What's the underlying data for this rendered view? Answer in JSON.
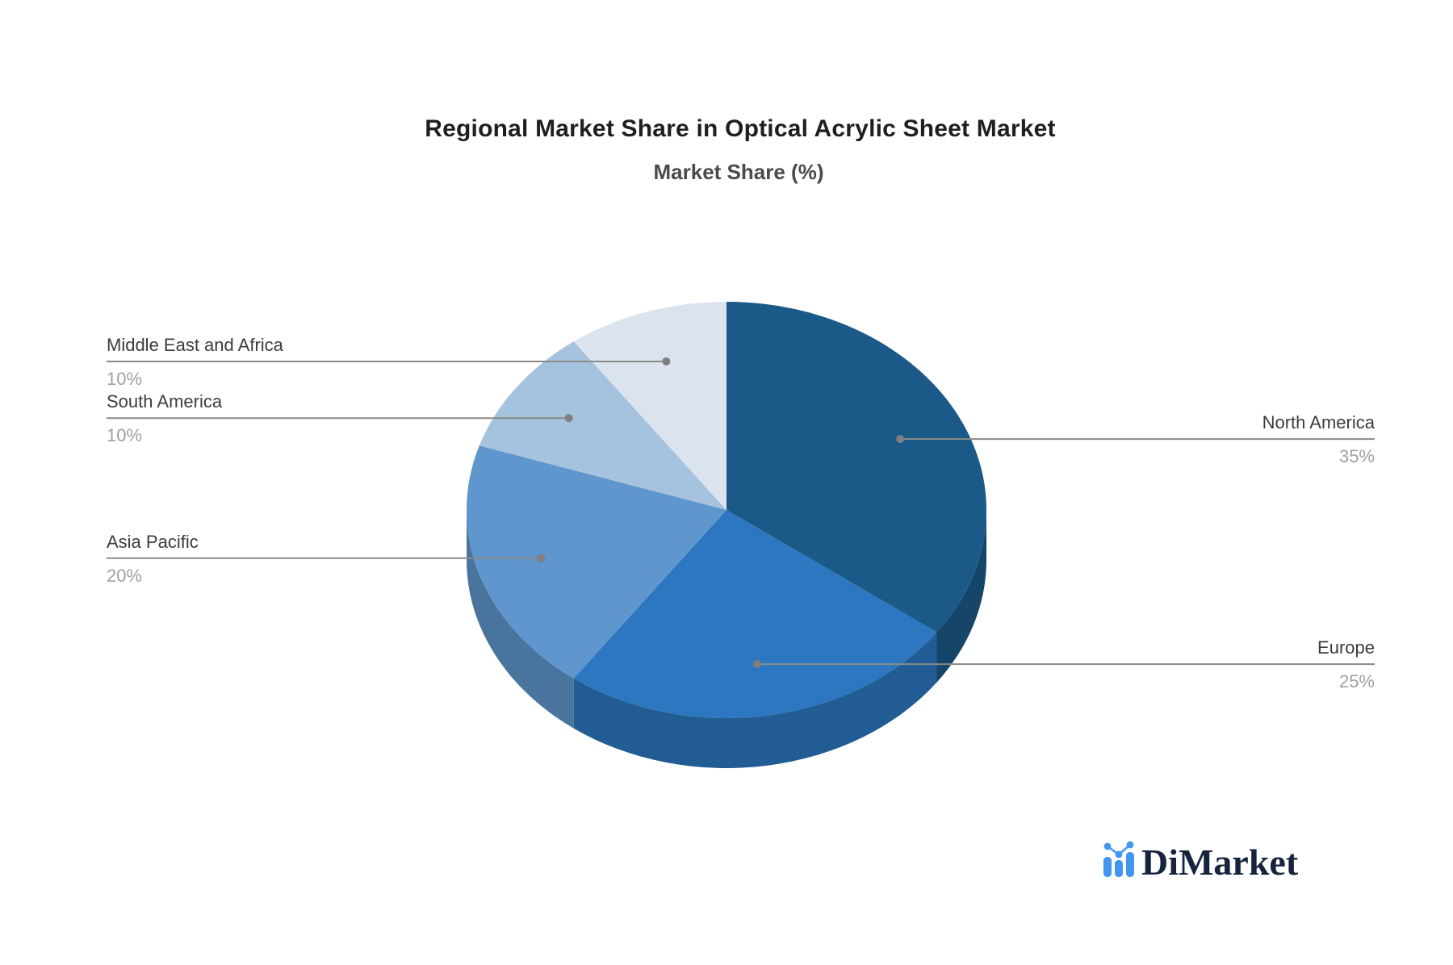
{
  "chart_data": {
    "type": "pie",
    "style": "3d",
    "title": "Regional Market Share in Optical Acrylic Sheet Market",
    "subtitle": "Market Share (%)",
    "unit": "%",
    "direction": "clockwise",
    "start_angle_deg": 0,
    "slices": [
      {
        "label": "North America",
        "value": 35,
        "percent_label": "35%",
        "color": "#1b5988",
        "label_side": "right"
      },
      {
        "label": "Europe",
        "value": 25,
        "percent_label": "25%",
        "color": "#2c77c0",
        "label_side": "right"
      },
      {
        "label": "Asia Pacific",
        "value": 20,
        "percent_label": "20%",
        "color": "#5f96cd",
        "label_side": "left"
      },
      {
        "label": "South America",
        "value": 10,
        "percent_label": "10%",
        "color": "#a5c2de",
        "label_side": "left"
      },
      {
        "label": "Middle East and Africa",
        "value": 10,
        "percent_label": "10%",
        "color": "#dbe3ee",
        "label_side": "left"
      }
    ],
    "colors": {
      "leader_line": "#8a8a8a",
      "leader_dot": "#7f7f7f",
      "label_text": "#3c3c3c",
      "percent_text": "#a0a0a0",
      "title_text": "#1f1f1f",
      "subtitle_text": "#4a4a4a"
    }
  },
  "branding": {
    "logo_text": "DiMarket",
    "logo_icon": "bar-chart-with-dots-icon",
    "logo_icon_color": "#4196ef",
    "logo_text_color": "#16233c"
  }
}
